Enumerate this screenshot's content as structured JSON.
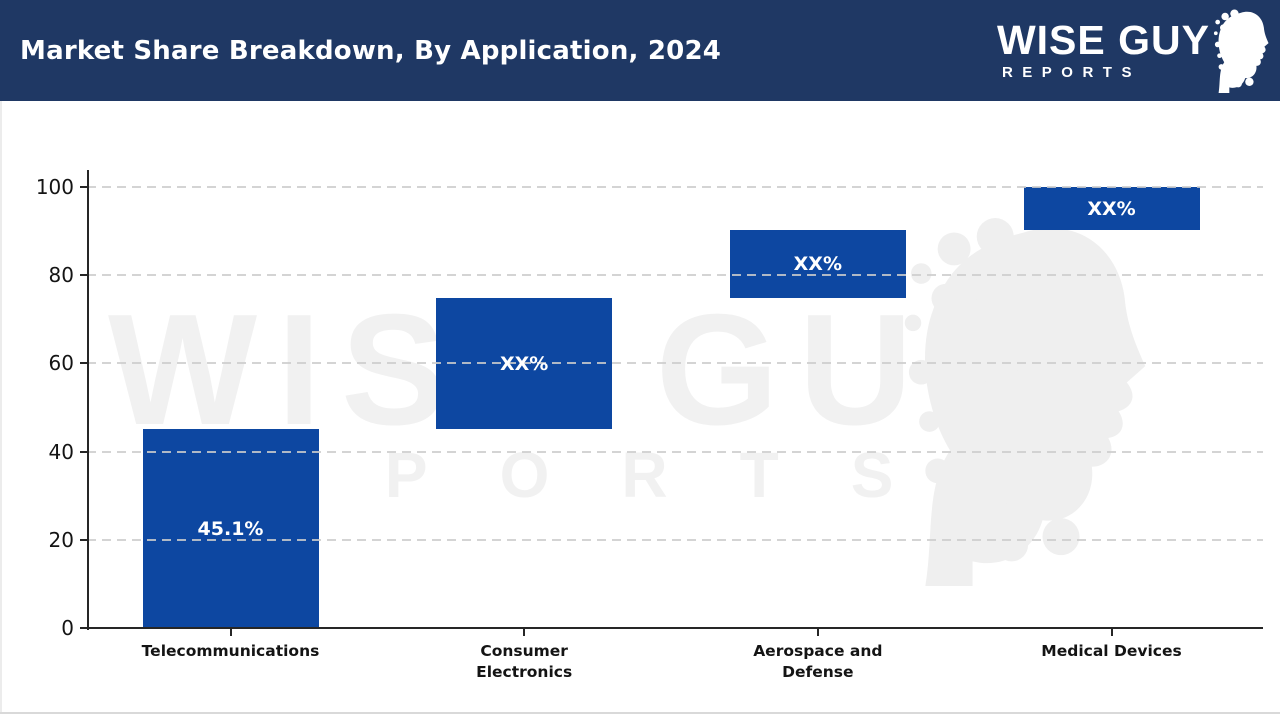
{
  "header": {
    "title": "Market Share Breakdown, By Application, 2024",
    "bg_color": "#1f3864",
    "logo": {
      "line1": "WISE GUY",
      "line2": "REPORTS"
    }
  },
  "watermark": {
    "line1": "WISE GUY",
    "line2": "REPORTS"
  },
  "chart_data": {
    "type": "bar",
    "subtype": "waterfall",
    "title": "Market Share Breakdown, By Application, 2024",
    "categories": [
      "Telecommunications",
      "Consumer Electronics",
      "Aerospace and Defense",
      "Medical Devices"
    ],
    "category_lines": [
      [
        "Telecommunications"
      ],
      [
        "Consumer",
        "Electronics"
      ],
      [
        "Aerospace and",
        "Defense"
      ],
      [
        "Medical Devices"
      ]
    ],
    "segments": [
      {
        "category": "Telecommunications",
        "start": 0,
        "end": 45.1,
        "label": "45.1%"
      },
      {
        "category": "Consumer Electronics",
        "start": 45.1,
        "end": 74.7,
        "label": "XX%"
      },
      {
        "category": "Aerospace and Defense",
        "start": 74.7,
        "end": 90.1,
        "label": "XX%"
      },
      {
        "category": "Medical Devices",
        "start": 90.1,
        "end": 100,
        "label": "XX%"
      }
    ],
    "y_ticks": [
      0,
      20,
      40,
      60,
      80,
      100
    ],
    "ylim": [
      0,
      104
    ],
    "xlabel": "",
    "ylabel": "",
    "grid": "horizontal-dashed",
    "legend": "none",
    "bar_color": "#0d47a1",
    "bar_label_color": "#ffffff"
  }
}
